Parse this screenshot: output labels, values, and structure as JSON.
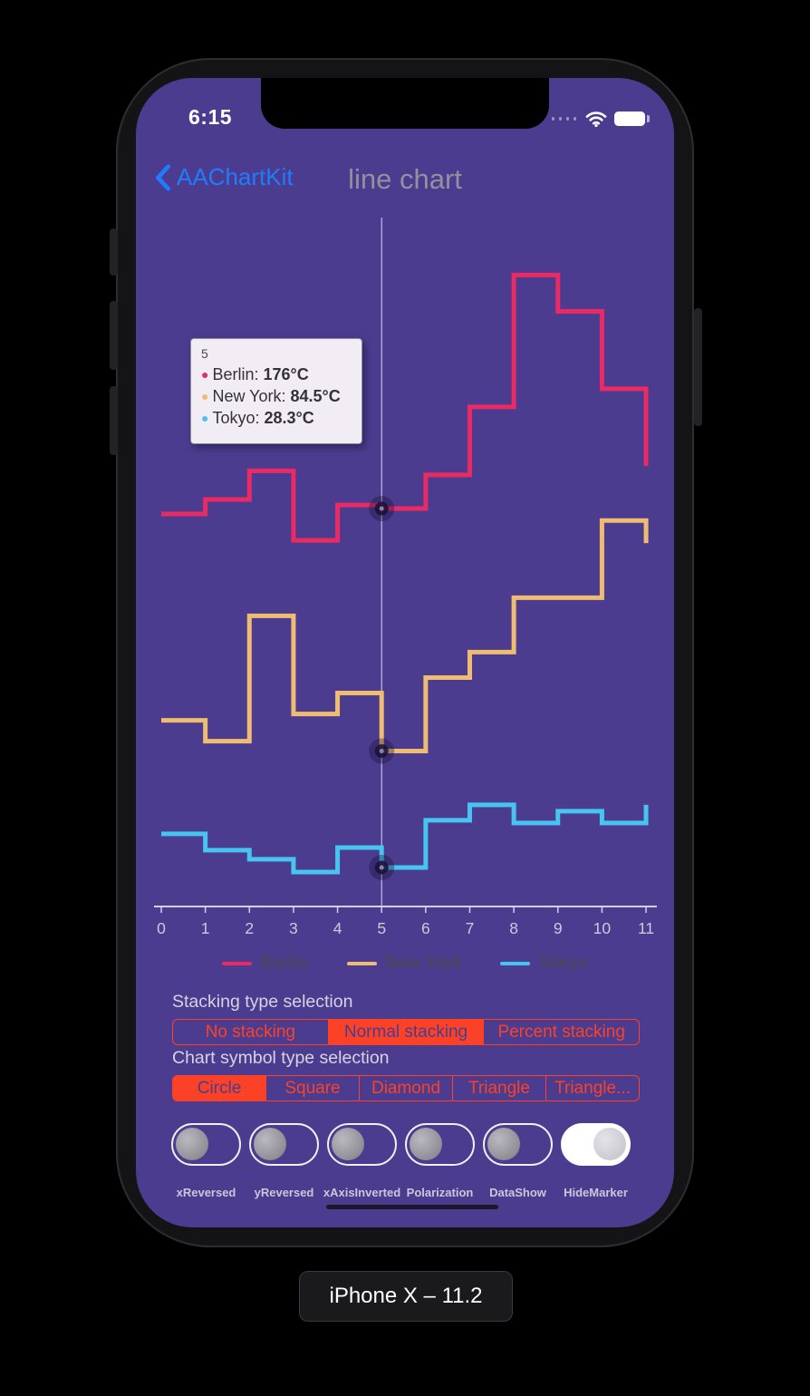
{
  "device": {
    "label": "iPhone X – 11.2"
  },
  "statusbar": {
    "time": "6:15",
    "icons": [
      "signal-dots",
      "wifi",
      "battery-full"
    ]
  },
  "nav": {
    "back_label": "AAChartKit",
    "title": "line chart"
  },
  "tooltip": {
    "header": "5",
    "items": [
      {
        "series": "Berlin",
        "value": "176°C",
        "color": "#EA2A63"
      },
      {
        "series": "New York",
        "value": "84.5°C",
        "color": "#EFBD72"
      },
      {
        "series": "Tokyo",
        "value": "28.3°C",
        "color": "#47C4EF"
      }
    ]
  },
  "chart_data": {
    "type": "line",
    "line_style": "step",
    "stacking": "normal",
    "title": "",
    "xlabel": "",
    "ylabel": "",
    "x_ticks": [
      "0",
      "1",
      "2",
      "3",
      "4",
      "5",
      "6",
      "7",
      "8",
      "9",
      "10",
      "11"
    ],
    "ylim": [
      0,
      500
    ],
    "crosshair_x": 5,
    "legend_position": "bottom",
    "legend": [
      "Berlin",
      "New York",
      "Tokyo"
    ],
    "series": [
      {
        "name": "Berlin",
        "color": "#EA2A63",
        "values": [
          149.8,
          175.4,
          105.2,
          126.0,
          136.5,
          176.0,
          147.1,
          178.0,
          234.2,
          207.8,
          95.6,
          56.0
        ]
      },
      {
        "name": "New York",
        "color": "#EFBD72",
        "values": [
          82.4,
          79.1,
          176.6,
          114.7,
          112.1,
          84.5,
          103.5,
          110.8,
          163.5,
          154.9,
          219.5,
          189.9
        ]
      },
      {
        "name": "Tokyo",
        "color": "#47C4EF",
        "values": [
          52.7,
          40.9,
          34.3,
          25.0,
          42.8,
          28.3,
          62.6,
          73.8,
          60.6,
          69.2,
          60.6,
          73.8
        ]
      }
    ]
  },
  "controls": {
    "stacking": {
      "label": "Stacking type selection",
      "options": [
        "No stacking",
        "Normal stacking",
        "Percent stacking"
      ],
      "selected_index": 1
    },
    "symbol": {
      "label": "Chart symbol type selection",
      "options": [
        "Circle",
        "Square",
        "Diamond",
        "Triangle",
        "Triangle..."
      ],
      "selected_index": 0
    },
    "switches": [
      {
        "label": "xReversed",
        "on": false
      },
      {
        "label": "yReversed",
        "on": false
      },
      {
        "label": "xAxisInverted",
        "on": false
      },
      {
        "label": "Polarization",
        "on": false
      },
      {
        "label": "DataShow",
        "on": false
      },
      {
        "label": "HideMarker",
        "on": true
      }
    ]
  },
  "colors": {
    "screen_bg": "#4C3C90",
    "accent_red": "#FB4226",
    "selected_segment_text": "#4C3C90",
    "nav_blue": "#1F7CFF",
    "axis_label": "#CDC9DB",
    "legend_text": "#4E4660",
    "tooltip_bg": "#F2EDF4",
    "tooltip_text": "#333333",
    "crosshair": "#E4E1EF"
  }
}
